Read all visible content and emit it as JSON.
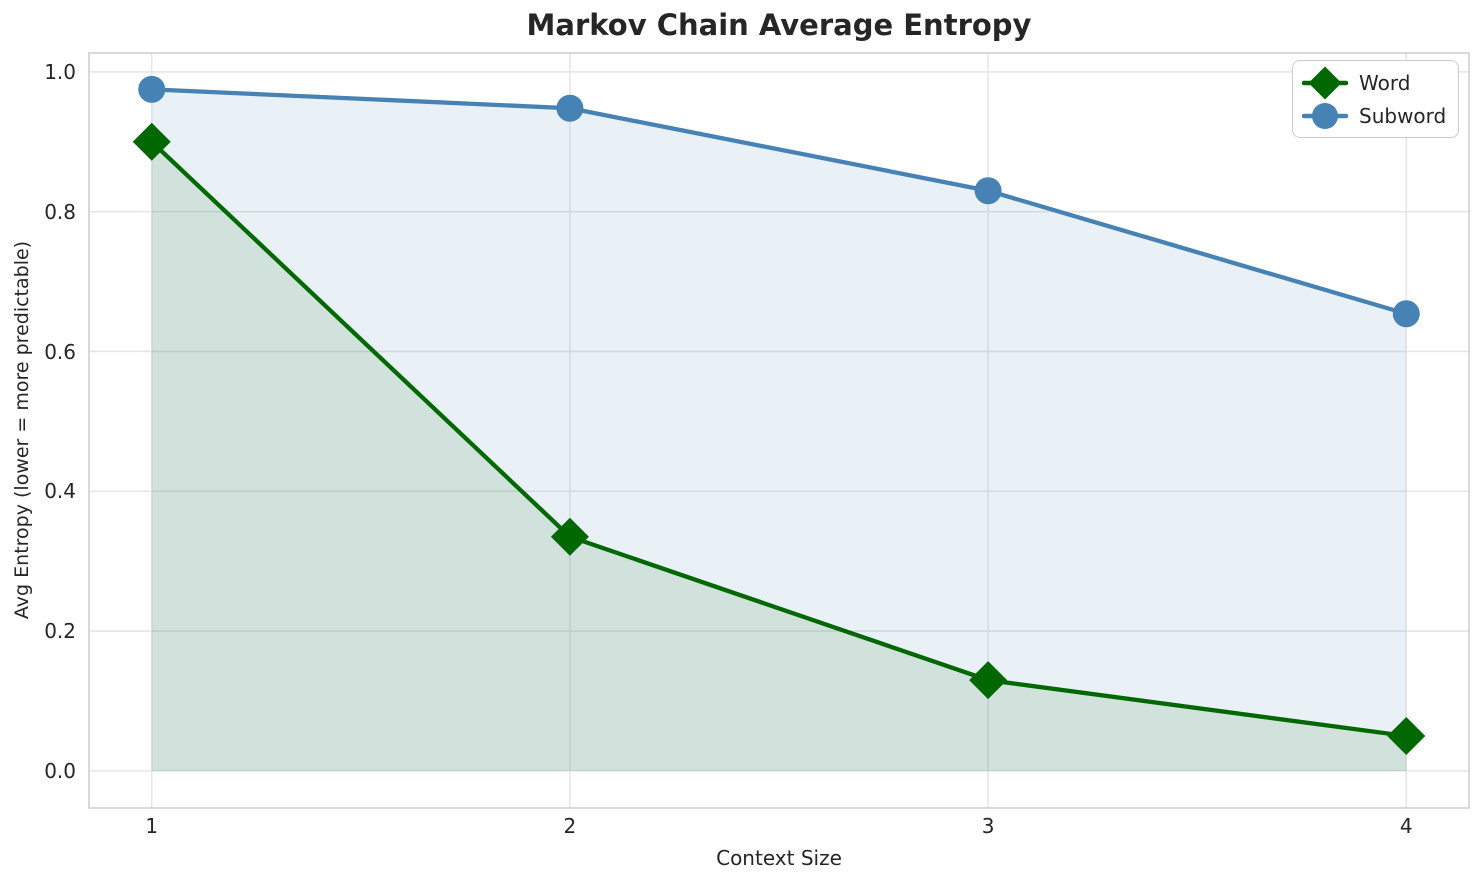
{
  "figure": {
    "background": "#ffffff"
  },
  "chart_data": {
    "type": "line",
    "title": "Markov Chain Average Entropy",
    "xlabel": "Context Size",
    "ylabel": "Avg Entropy (lower = more predictable)",
    "x": [
      1,
      2,
      3,
      4
    ],
    "series": [
      {
        "name": "Word",
        "marker": "diamond",
        "color": "#016801",
        "fill_color": "rgba(1,104,1,0.10)",
        "values": [
          0.9,
          0.335,
          0.13,
          0.05
        ]
      },
      {
        "name": "Subword",
        "marker": "circle",
        "color": "#4682B4",
        "fill_color": "rgba(70,130,180,0.12)",
        "values": [
          0.975,
          0.948,
          0.83,
          0.654
        ]
      }
    ],
    "xticks": [
      "1",
      "2",
      "3",
      "4"
    ],
    "yticks": [
      "0.0",
      "0.2",
      "0.4",
      "0.6",
      "0.8",
      "1.0"
    ],
    "xlim": [
      0.85,
      4.15
    ],
    "ylim": [
      -0.053,
      1.027
    ],
    "fill_baseline": 0,
    "grid": true,
    "legend_position": "top-right",
    "colors": {
      "grid": "#e4e4e4",
      "spine": "#d0d0d0",
      "text": "#262626",
      "legend_border": "#cccccc"
    }
  }
}
